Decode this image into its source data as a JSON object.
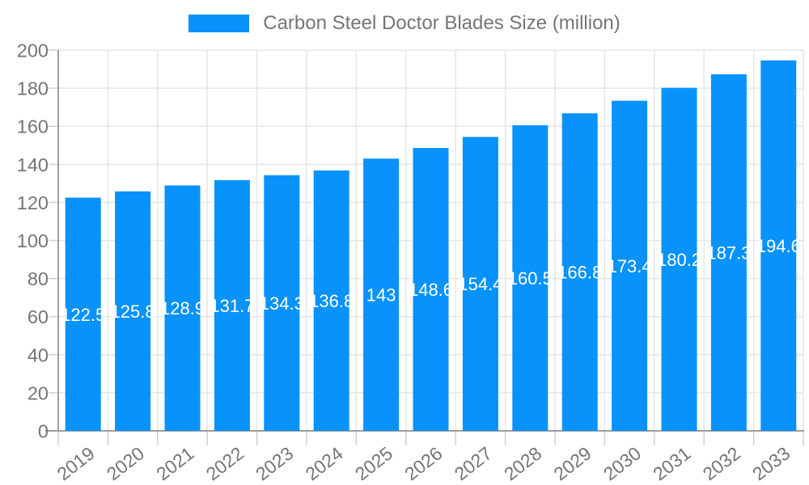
{
  "legend": {
    "label": "Carbon Steel Doctor Blades Size (million)"
  },
  "colors": {
    "bar": "#0892fb",
    "grid": "#e6e6e6",
    "axis": "#9e9e9e",
    "tick": "#d0d0d0",
    "axis_text": "#757575",
    "value_label_text": "#ffffff",
    "background": "#ffffff"
  },
  "chart_data": {
    "type": "bar",
    "title": "Carbon Steel Doctor Blades Size (million)",
    "categories": [
      "2019",
      "2020",
      "2021",
      "2022",
      "2023",
      "2024",
      "2025",
      "2026",
      "2027",
      "2028",
      "2029",
      "2030",
      "2031",
      "2032",
      "2033"
    ],
    "values": [
      122.5,
      125.8,
      128.9,
      131.7,
      134.3,
      136.8,
      143,
      148.6,
      154.4,
      160.5,
      166.8,
      173.4,
      180.2,
      187.3,
      194.6
    ],
    "xlabel": "",
    "ylabel": "",
    "ylim": [
      0,
      200
    ],
    "ytick_step": 20,
    "grid": true,
    "legend_position": "top",
    "value_labels": "inside-middle",
    "x_label_rotation_deg": -38
  }
}
